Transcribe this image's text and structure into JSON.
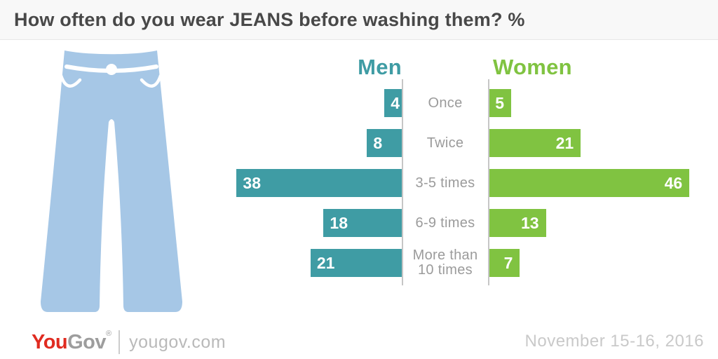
{
  "title": "How often do you wear JEANS before washing them? %",
  "chart_data": {
    "type": "bar",
    "orientation": "diverging-horizontal",
    "title": "How often do you wear JEANS before washing them? %",
    "unit": "%",
    "categories": [
      "Once",
      "Twice",
      "3-5 times",
      "6-9 times",
      "More than 10 times"
    ],
    "series": [
      {
        "name": "Men",
        "color": "#3f9ca4",
        "values": [
          4,
          8,
          38,
          18,
          21
        ]
      },
      {
        "name": "Women",
        "color": "#80c341",
        "values": [
          5,
          21,
          46,
          13,
          7
        ]
      }
    ],
    "value_labels_shown": true,
    "axis_range": [
      0,
      46
    ],
    "legend_position": "column-headers"
  },
  "colors": {
    "men_teal": "#3f9ca4",
    "women_green": "#80c341",
    "jeans_blue": "#a6c7e6",
    "title_gray": "#484848",
    "label_gray": "#9b9b9b",
    "axis_gray": "#c6c6c6",
    "brand_red": "#e02b20",
    "brand_gray": "#9d9d9d",
    "footer_gray": "#c9c9c9"
  },
  "footer": {
    "brand_part1": "You",
    "brand_part2": "Gov",
    "brand_mark": "®",
    "site": "yougov.com",
    "date": "November 15-16, 2016"
  }
}
